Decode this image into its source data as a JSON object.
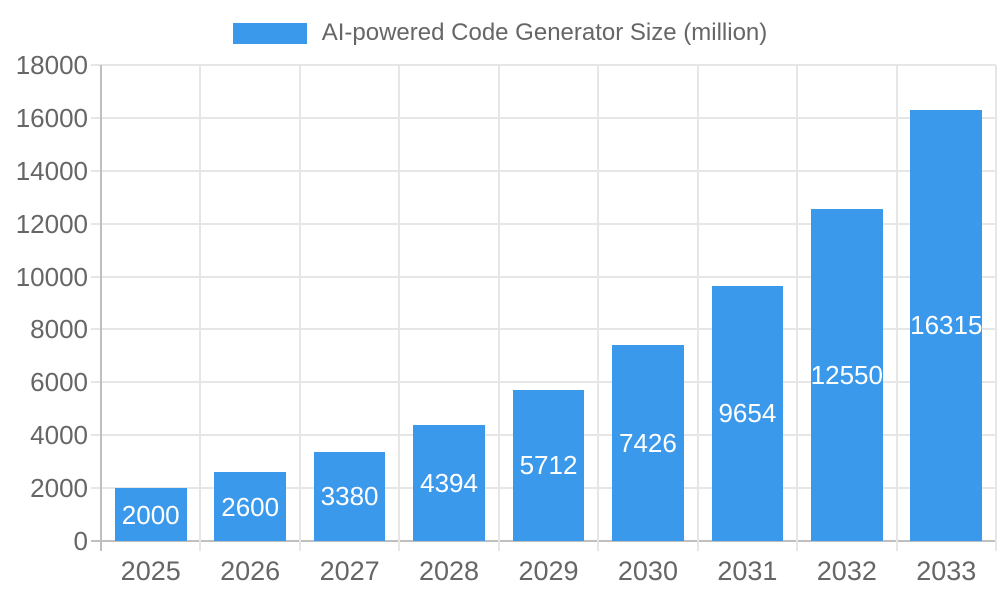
{
  "legend": {
    "label": "AI-powered Code Generator Size (million)"
  },
  "chart_data": {
    "type": "bar",
    "title": "AI-powered Code Generator Size (million)",
    "categories": [
      "2025",
      "2026",
      "2027",
      "2028",
      "2029",
      "2030",
      "2031",
      "2032",
      "2033"
    ],
    "values": [
      2000,
      2600,
      3380,
      4394,
      5712,
      7426,
      9654,
      12550,
      16315
    ],
    "xlabel": "",
    "ylabel": "",
    "ylim": [
      0,
      18000
    ],
    "ytick_step": 2000,
    "grid": true,
    "legend_position": "top",
    "colors": {
      "bar": "#3B99EC",
      "bar_label": "#FFFFFF",
      "axis_text": "#666666",
      "grid_line": "#E6E6E6",
      "axis_line": "#BFBFBF"
    }
  }
}
